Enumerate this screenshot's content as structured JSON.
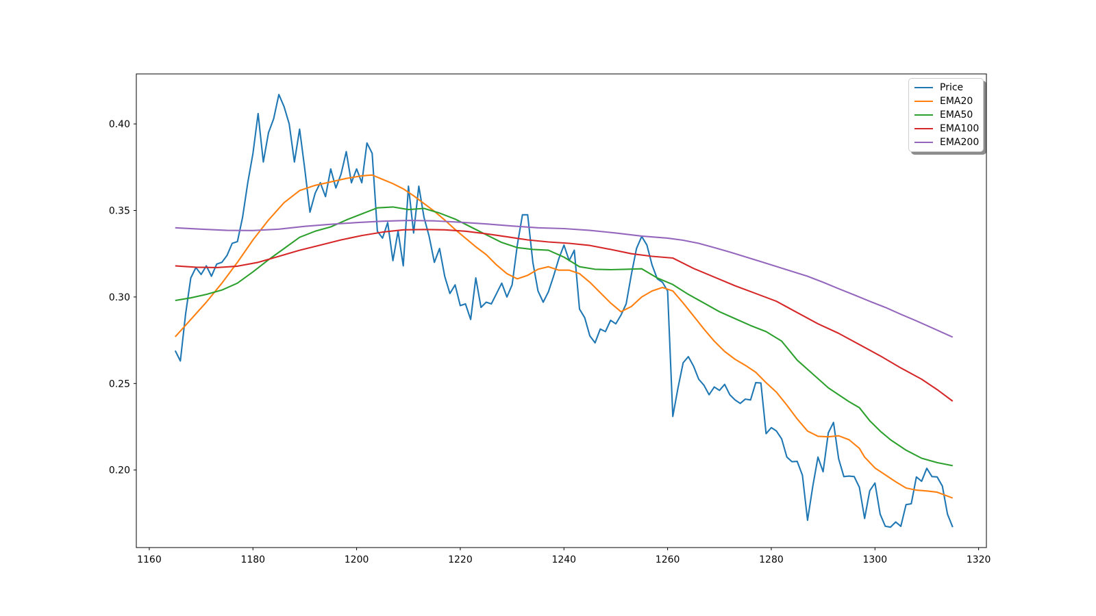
{
  "figure": {
    "background_color": "#ffffff",
    "axes_edge_color": "#000000",
    "tick_label_color": "#000000",
    "legend_border_color": "#cccccc",
    "legend_background": "#ffffff"
  },
  "chart_data": {
    "type": "line",
    "title": "",
    "xlabel": "",
    "ylabel": "",
    "grid": false,
    "xlim": [
      1157.5,
      1321.5
    ],
    "ylim": [
      0.1552,
      0.4289
    ],
    "x_ticks": [
      1160,
      1180,
      1200,
      1220,
      1240,
      1260,
      1280,
      1300,
      1320
    ],
    "x_tick_labels": [
      "1160",
      "1180",
      "1200",
      "1220",
      "1240",
      "1260",
      "1280",
      "1300",
      "1320"
    ],
    "y_ticks": [
      0.2,
      0.25,
      0.3,
      0.35,
      0.4
    ],
    "y_tick_labels": [
      "0.20",
      "0.25",
      "0.30",
      "0.35",
      "0.40"
    ],
    "legend": {
      "position": "upper-right",
      "entries": [
        "Price",
        "EMA20",
        "EMA50",
        "EMA100",
        "EMA200"
      ]
    },
    "series": [
      {
        "name": "Price",
        "color": "#1f77b4",
        "x_start": 1165,
        "x_step": 1,
        "values": [
          0.269,
          0.263,
          0.29,
          0.311,
          0.317,
          0.313,
          0.318,
          0.312,
          0.319,
          0.32,
          0.324,
          0.331,
          0.332,
          0.346,
          0.366,
          0.383,
          0.406,
          0.378,
          0.395,
          0.403,
          0.417,
          0.41,
          0.4,
          0.378,
          0.397,
          0.374,
          0.349,
          0.36,
          0.366,
          0.358,
          0.374,
          0.363,
          0.371,
          0.384,
          0.366,
          0.374,
          0.366,
          0.389,
          0.383,
          0.338,
          0.334,
          0.343,
          0.321,
          0.338,
          0.318,
          0.364,
          0.337,
          0.364,
          0.346,
          0.335,
          0.32,
          0.328,
          0.312,
          0.302,
          0.307,
          0.295,
          0.296,
          0.287,
          0.311,
          0.294,
          0.297,
          0.296,
          0.302,
          0.308,
          0.3,
          0.307,
          0.33,
          0.3475,
          0.3475,
          0.32,
          0.3035,
          0.297,
          0.303,
          0.312,
          0.322,
          0.33,
          0.321,
          0.327,
          0.293,
          0.288,
          0.2775,
          0.2735,
          0.2815,
          0.28,
          0.2865,
          0.2845,
          0.2895,
          0.296,
          0.313,
          0.328,
          0.335,
          0.33,
          0.3185,
          0.3105,
          0.3085,
          0.3035,
          0.231,
          0.2475,
          0.262,
          0.2655,
          0.26,
          0.2525,
          0.249,
          0.2435,
          0.248,
          0.246,
          0.2495,
          0.2435,
          0.2405,
          0.2385,
          0.241,
          0.2405,
          0.2505,
          0.2503,
          0.221,
          0.2245,
          0.2225,
          0.218,
          0.2075,
          0.2048,
          0.205,
          0.197,
          0.171,
          0.1905,
          0.2075,
          0.199,
          0.2215,
          0.2275,
          0.2065,
          0.1962,
          0.1965,
          0.1962,
          0.19,
          0.172,
          0.188,
          0.1925,
          0.1745,
          0.1675,
          0.167,
          0.17,
          0.1675,
          0.18,
          0.1805,
          0.196,
          0.1935,
          0.201,
          0.1962,
          0.196,
          0.1907,
          0.1745,
          0.167
        ]
      },
      {
        "name": "EMA20",
        "color": "#ff7f0e",
        "points": [
          [
            1165,
            0.277
          ],
          [
            1168,
            0.287
          ],
          [
            1171,
            0.297
          ],
          [
            1174,
            0.308
          ],
          [
            1177,
            0.32
          ],
          [
            1180,
            0.333
          ],
          [
            1183,
            0.3445
          ],
          [
            1186,
            0.3545
          ],
          [
            1189,
            0.3615
          ],
          [
            1192,
            0.3645
          ],
          [
            1195,
            0.3665
          ],
          [
            1198,
            0.3685
          ],
          [
            1201,
            0.37
          ],
          [
            1203,
            0.3705
          ],
          [
            1205,
            0.368
          ],
          [
            1207,
            0.3655
          ],
          [
            1209,
            0.3625
          ],
          [
            1211,
            0.3585
          ],
          [
            1213,
            0.354
          ],
          [
            1215,
            0.3495
          ],
          [
            1217,
            0.3445
          ],
          [
            1219,
            0.339
          ],
          [
            1221,
            0.334
          ],
          [
            1223,
            0.329
          ],
          [
            1225,
            0.3245
          ],
          [
            1227,
            0.3185
          ],
          [
            1229,
            0.3135
          ],
          [
            1231,
            0.3105
          ],
          [
            1233,
            0.3125
          ],
          [
            1235,
            0.316
          ],
          [
            1237,
            0.3175
          ],
          [
            1239,
            0.3155
          ],
          [
            1241,
            0.3155
          ],
          [
            1243,
            0.3135
          ],
          [
            1245,
            0.3085
          ],
          [
            1247,
            0.3025
          ],
          [
            1249,
            0.2965
          ],
          [
            1251,
            0.2915
          ],
          [
            1253,
            0.2945
          ],
          [
            1255,
            0.3
          ],
          [
            1257,
            0.3035
          ],
          [
            1259,
            0.3055
          ],
          [
            1261,
            0.3035
          ],
          [
            1263,
            0.2965
          ],
          [
            1265,
            0.289
          ],
          [
            1267,
            0.2815
          ],
          [
            1269,
            0.2745
          ],
          [
            1271,
            0.2685
          ],
          [
            1273,
            0.264
          ],
          [
            1275,
            0.2605
          ],
          [
            1277,
            0.2565
          ],
          [
            1279,
            0.2505
          ],
          [
            1281,
            0.245
          ],
          [
            1283,
            0.2375
          ],
          [
            1285,
            0.2295
          ],
          [
            1287,
            0.2225
          ],
          [
            1289,
            0.2195
          ],
          [
            1291,
            0.2192
          ],
          [
            1293,
            0.2198
          ],
          [
            1295,
            0.2175
          ],
          [
            1297,
            0.2125
          ],
          [
            1298,
            0.2075
          ],
          [
            1300,
            0.2012
          ],
          [
            1302,
            0.1972
          ],
          [
            1304,
            0.1932
          ],
          [
            1306,
            0.1896
          ],
          [
            1308,
            0.1884
          ],
          [
            1310,
            0.1879
          ],
          [
            1312,
            0.1872
          ],
          [
            1315,
            0.1838
          ]
        ]
      },
      {
        "name": "EMA50",
        "color": "#2ca02c",
        "points": [
          [
            1165,
            0.298
          ],
          [
            1168,
            0.2995
          ],
          [
            1171,
            0.3015
          ],
          [
            1174,
            0.304
          ],
          [
            1177,
            0.308
          ],
          [
            1180,
            0.3145
          ],
          [
            1183,
            0.3215
          ],
          [
            1186,
            0.328
          ],
          [
            1189,
            0.3345
          ],
          [
            1192,
            0.338
          ],
          [
            1195,
            0.3405
          ],
          [
            1198,
            0.3445
          ],
          [
            1201,
            0.348
          ],
          [
            1204,
            0.3515
          ],
          [
            1207,
            0.352
          ],
          [
            1210,
            0.3505
          ],
          [
            1213,
            0.3512
          ],
          [
            1216,
            0.3485
          ],
          [
            1219,
            0.345
          ],
          [
            1222,
            0.3405
          ],
          [
            1225,
            0.336
          ],
          [
            1228,
            0.3315
          ],
          [
            1231,
            0.3285
          ],
          [
            1234,
            0.3275
          ],
          [
            1237,
            0.327
          ],
          [
            1240,
            0.323
          ],
          [
            1243,
            0.3175
          ],
          [
            1246,
            0.316
          ],
          [
            1249,
            0.3158
          ],
          [
            1252,
            0.316
          ],
          [
            1255,
            0.3163
          ],
          [
            1258,
            0.311
          ],
          [
            1261,
            0.3072
          ],
          [
            1264,
            0.3015
          ],
          [
            1267,
            0.2965
          ],
          [
            1270,
            0.2915
          ],
          [
            1273,
            0.2875
          ],
          [
            1276,
            0.2835
          ],
          [
            1279,
            0.28
          ],
          [
            1282,
            0.2745
          ],
          [
            1285,
            0.2635
          ],
          [
            1288,
            0.2555
          ],
          [
            1291,
            0.2475
          ],
          [
            1293,
            0.2435
          ],
          [
            1295,
            0.2395
          ],
          [
            1297,
            0.236
          ],
          [
            1299,
            0.2285
          ],
          [
            1301,
            0.2225
          ],
          [
            1303,
            0.2175
          ],
          [
            1306,
            0.2115
          ],
          [
            1309,
            0.2068
          ],
          [
            1312,
            0.2043
          ],
          [
            1315,
            0.2025
          ]
        ]
      },
      {
        "name": "EMA100",
        "color": "#d62728",
        "points": [
          [
            1165,
            0.318
          ],
          [
            1169,
            0.3172
          ],
          [
            1173,
            0.317
          ],
          [
            1177,
            0.3178
          ],
          [
            1181,
            0.32
          ],
          [
            1185,
            0.3235
          ],
          [
            1189,
            0.327
          ],
          [
            1193,
            0.33
          ],
          [
            1197,
            0.333
          ],
          [
            1201,
            0.3355
          ],
          [
            1205,
            0.3375
          ],
          [
            1209,
            0.3388
          ],
          [
            1213,
            0.339
          ],
          [
            1217,
            0.3388
          ],
          [
            1221,
            0.338
          ],
          [
            1225,
            0.3365
          ],
          [
            1229,
            0.3348
          ],
          [
            1233,
            0.333
          ],
          [
            1237,
            0.3318
          ],
          [
            1241,
            0.331
          ],
          [
            1245,
            0.3298
          ],
          [
            1249,
            0.3275
          ],
          [
            1253,
            0.325
          ],
          [
            1257,
            0.3235
          ],
          [
            1261,
            0.3225
          ],
          [
            1265,
            0.3165
          ],
          [
            1269,
            0.3115
          ],
          [
            1273,
            0.3065
          ],
          [
            1277,
            0.302
          ],
          [
            1281,
            0.2975
          ],
          [
            1285,
            0.291
          ],
          [
            1289,
            0.2845
          ],
          [
            1293,
            0.279
          ],
          [
            1297,
            0.2725
          ],
          [
            1301,
            0.266
          ],
          [
            1305,
            0.259
          ],
          [
            1309,
            0.2525
          ],
          [
            1312,
            0.2465
          ],
          [
            1315,
            0.2398
          ]
        ]
      },
      {
        "name": "EMA200",
        "color": "#9467bd",
        "points": [
          [
            1165,
            0.34
          ],
          [
            1170,
            0.3392
          ],
          [
            1175,
            0.3385
          ],
          [
            1180,
            0.3384
          ],
          [
            1185,
            0.3392
          ],
          [
            1190,
            0.3408
          ],
          [
            1195,
            0.342
          ],
          [
            1200,
            0.343
          ],
          [
            1205,
            0.3438
          ],
          [
            1210,
            0.3442
          ],
          [
            1215,
            0.344
          ],
          [
            1220,
            0.3432
          ],
          [
            1225,
            0.3422
          ],
          [
            1230,
            0.341
          ],
          [
            1235,
            0.34
          ],
          [
            1240,
            0.3395
          ],
          [
            1245,
            0.3385
          ],
          [
            1250,
            0.337
          ],
          [
            1255,
            0.3352
          ],
          [
            1260,
            0.334
          ],
          [
            1263,
            0.3328
          ],
          [
            1266,
            0.331
          ],
          [
            1269,
            0.3285
          ],
          [
            1272,
            0.326
          ],
          [
            1275,
            0.3232
          ],
          [
            1278,
            0.3204
          ],
          [
            1281,
            0.3176
          ],
          [
            1284,
            0.3148
          ],
          [
            1287,
            0.312
          ],
          [
            1290,
            0.3085
          ],
          [
            1293,
            0.3048
          ],
          [
            1296,
            0.3012
          ],
          [
            1299,
            0.2975
          ],
          [
            1302,
            0.294
          ],
          [
            1305,
            0.29
          ],
          [
            1308,
            0.2862
          ],
          [
            1311,
            0.2822
          ],
          [
            1315,
            0.2768
          ]
        ]
      }
    ]
  }
}
